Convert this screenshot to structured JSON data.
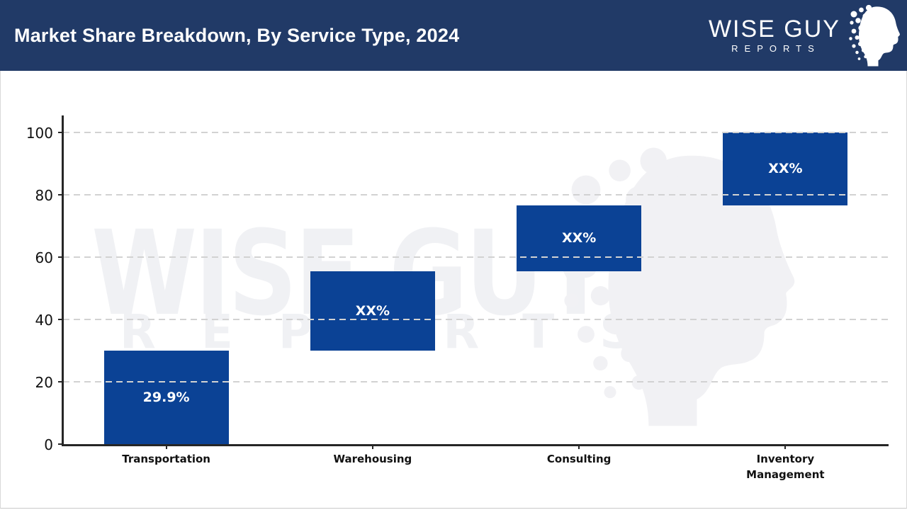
{
  "header": {
    "title": "Market Share Breakdown, By Service Type, 2024",
    "logo": {
      "line1": "WISE GUY",
      "line2": "REPORTS"
    }
  },
  "watermark": {
    "line1": "WISE GUY",
    "line2": "REPORTS"
  },
  "colors": {
    "header_bg": "#213a67",
    "bar": "#0b4295",
    "bar_label": "#ffffff",
    "axis": "#262626",
    "grid": "#d2d2d2",
    "tick_text": "#111111",
    "watermark": "#f0f1f4"
  },
  "chart_data": {
    "type": "bar",
    "variant": "waterfall",
    "title": "Market Share Breakdown, By Service Type, 2024",
    "xlabel": "",
    "ylabel": "",
    "ylim": [
      0,
      100
    ],
    "yticks": [
      0,
      20,
      40,
      60,
      80,
      100
    ],
    "grid": "horizontal-dashed",
    "legend": "none",
    "categories": [
      "Transportation",
      "Warehousing",
      "Consulting",
      "Inventory Management"
    ],
    "segments": [
      {
        "category": "Transportation",
        "start": 0,
        "end": 29.9,
        "value_label": "29.9%"
      },
      {
        "category": "Warehousing",
        "start": 29.9,
        "end": 55.5,
        "value_label": "XX%"
      },
      {
        "category": "Consulting",
        "start": 55.5,
        "end": 76.6,
        "value_label": "XX%"
      },
      {
        "category": "Inventory Management",
        "start": 76.6,
        "end": 100,
        "value_label": "XX%"
      }
    ]
  }
}
